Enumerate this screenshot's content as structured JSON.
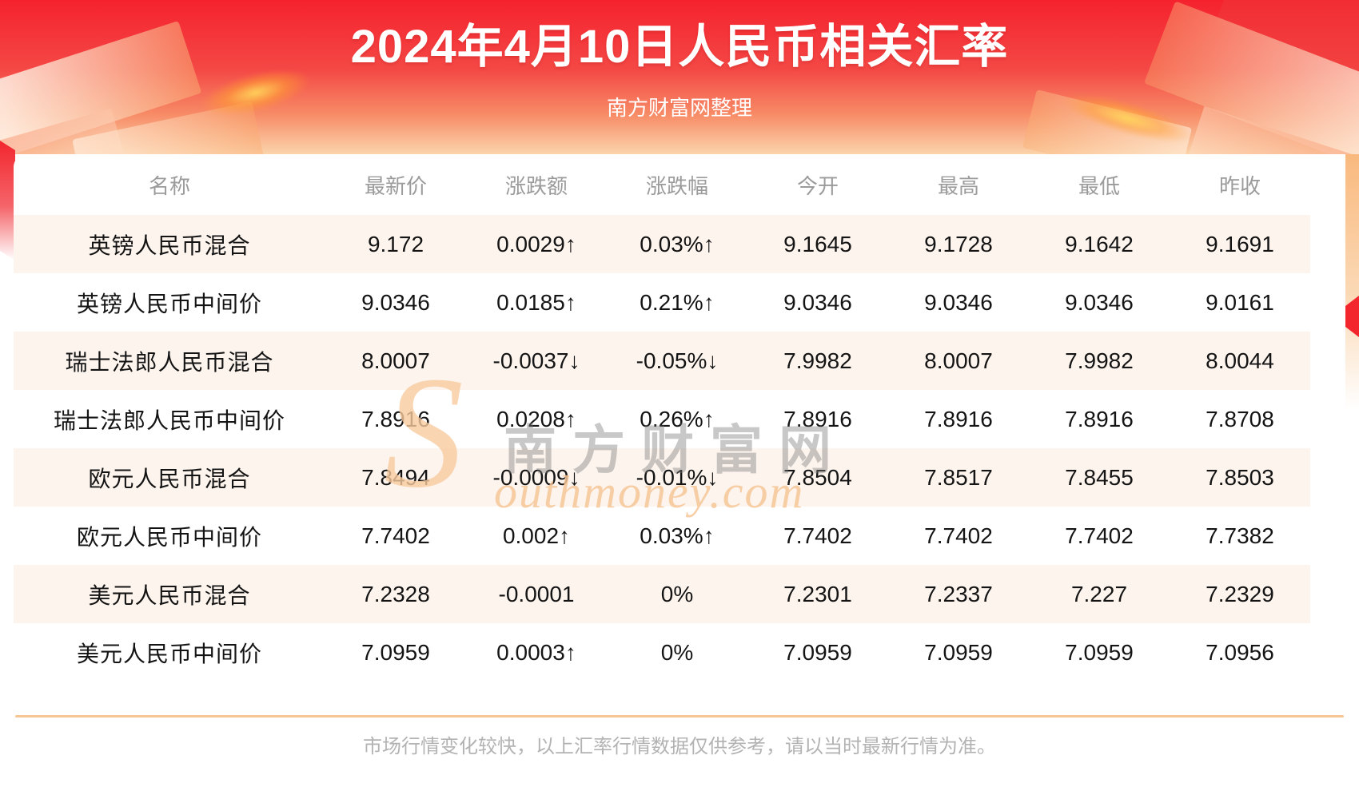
{
  "chart_data": {
    "type": "table",
    "title": "2024年4月10日人民币相关汇率",
    "subtitle": "南方财富网整理",
    "columns": [
      "名称",
      "最新价",
      "涨跌额",
      "涨跌幅",
      "今开",
      "最高",
      "最低",
      "昨收"
    ],
    "rows": [
      {
        "name": "英镑人民币混合",
        "latest": "9.172",
        "latest_dir": "up",
        "change": "0.0029↑",
        "change_dir": "up",
        "pct": "0.03%↑",
        "pct_dir": "up",
        "open": "9.1645",
        "high": "9.1728",
        "low": "9.1642",
        "prev_close": "9.1691"
      },
      {
        "name": "英镑人民币中间价",
        "latest": "9.0346",
        "latest_dir": "up",
        "change": "0.0185↑",
        "change_dir": "up",
        "pct": "0.21%↑",
        "pct_dir": "up",
        "open": "9.0346",
        "high": "9.0346",
        "low": "9.0346",
        "prev_close": "9.0161"
      },
      {
        "name": "瑞士法郎人民币混合",
        "latest": "8.0007",
        "latest_dir": "down",
        "change": "-0.0037↓",
        "change_dir": "down",
        "pct": "-0.05%↓",
        "pct_dir": "down",
        "open": "7.9982",
        "high": "8.0007",
        "low": "7.9982",
        "prev_close": "8.0044"
      },
      {
        "name": "瑞士法郎人民币中间价",
        "latest": "7.8916",
        "latest_dir": "up",
        "change": "0.0208↑",
        "change_dir": "up",
        "pct": "0.26%↑",
        "pct_dir": "up",
        "open": "7.8916",
        "high": "7.8916",
        "low": "7.8916",
        "prev_close": "7.8708"
      },
      {
        "name": "欧元人民币混合",
        "latest": "7.8494",
        "latest_dir": "down",
        "change": "-0.0009↓",
        "change_dir": "down",
        "pct": "-0.01%↓",
        "pct_dir": "down",
        "open": "7.8504",
        "high": "7.8517",
        "low": "7.8455",
        "prev_close": "7.8503"
      },
      {
        "name": "欧元人民币中间价",
        "latest": "7.7402",
        "latest_dir": "up",
        "change": "0.002↑",
        "change_dir": "up",
        "pct": "0.03%↑",
        "pct_dir": "up",
        "open": "7.7402",
        "high": "7.7402",
        "low": "7.7402",
        "prev_close": "7.7382"
      },
      {
        "name": "美元人民币混合",
        "latest": "7.2328",
        "latest_dir": "flat",
        "change": "-0.0001",
        "change_dir": "flat",
        "pct": "0%",
        "pct_dir": "flat",
        "open": "7.2301",
        "high": "7.2337",
        "low": "7.227",
        "prev_close": "7.2329"
      },
      {
        "name": "美元人民币中间价",
        "latest": "7.0959",
        "latest_dir": "flat",
        "change": "0.0003↑",
        "change_dir": "up",
        "pct": "0%",
        "pct_dir": "flat",
        "open": "7.0959",
        "high": "7.0959",
        "low": "7.0959",
        "prev_close": "7.0956"
      }
    ]
  },
  "watermark": {
    "s": "S",
    "cjk": "南方财富网",
    "script": "outhmoney.com"
  },
  "footer": {
    "note": "市场行情变化较快，以上汇率行情数据仅供参考，请以当时最新行情为准。"
  },
  "colors": {
    "banner_top": "#f5222e",
    "banner_bottom": "#fbd4ab",
    "up": "#f32121",
    "down": "#1e941e",
    "flat": "#141414",
    "header_text": "#9b9b9b",
    "row_alt_background": "#fdf4ee",
    "divider": "#f7c793",
    "footer_text": "#b3b3b3"
  }
}
